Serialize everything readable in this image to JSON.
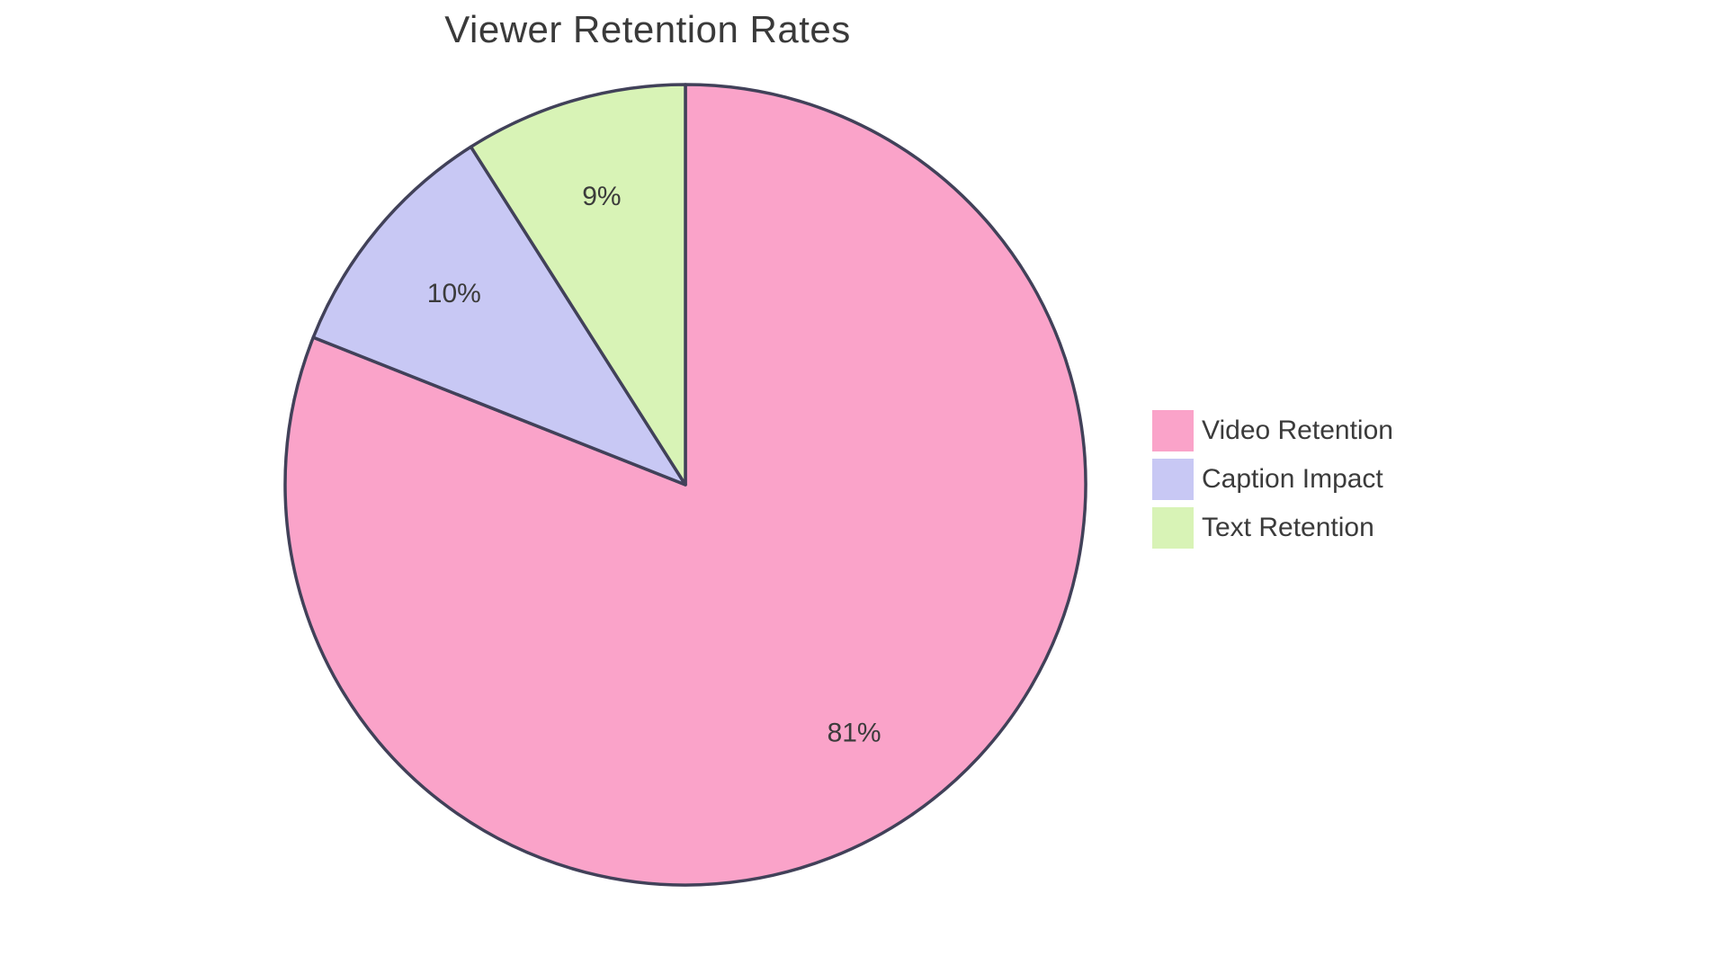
{
  "page": {
    "background": "#FFFFFF"
  },
  "chart_data": {
    "type": "pie",
    "title": "Viewer Retention Rates",
    "labels": [
      "Video Retention",
      "Caption Impact",
      "Text Retention"
    ],
    "values": [
      81,
      10,
      9
    ],
    "display_labels": [
      "81%",
      "10%",
      "9%"
    ],
    "colors": [
      "#FAA3C9",
      "#C8C8F4",
      "#D8F3B6"
    ],
    "edge_color": "#414159",
    "label_color": "#3B3B3B",
    "title_color": "#3A3A3A",
    "start_angle_deg": 0,
    "direction": "clockwise",
    "legend_position": "right",
    "grid": false
  }
}
